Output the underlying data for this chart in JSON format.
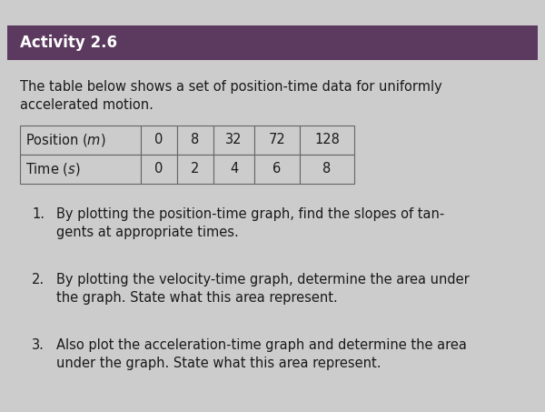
{
  "title": "Activity 2.6",
  "title_bg_color": "#5c3a5f",
  "title_text_color": "#ffffff",
  "body_bg_color": "#cccccc",
  "intro_line1": "The table below shows a set of position-time data for uniformly",
  "intro_line2": "accelerated motion.",
  "table_row1": [
    "Position (m)",
    "0",
    "8",
    "32",
    "72",
    "128"
  ],
  "table_row2": [
    "Time (s)",
    "0",
    "2",
    "4",
    "6",
    "8"
  ],
  "item1_line1": "By plotting the position-time graph, find the slopes of tan-",
  "item1_line2": "gents at appropriate times.",
  "item2_line1": "By plotting the velocity-time graph, determine the area under",
  "item2_line2": "the graph. State what this area represent.",
  "item3_line1": "Also plot the acceleration-time graph and determine the area",
  "item3_line2": "under the graph. State what this area represent.",
  "body_text_color": "#1a1a1a",
  "font_size_title": 12,
  "font_size_body": 10.5,
  "font_size_table": 10.5
}
